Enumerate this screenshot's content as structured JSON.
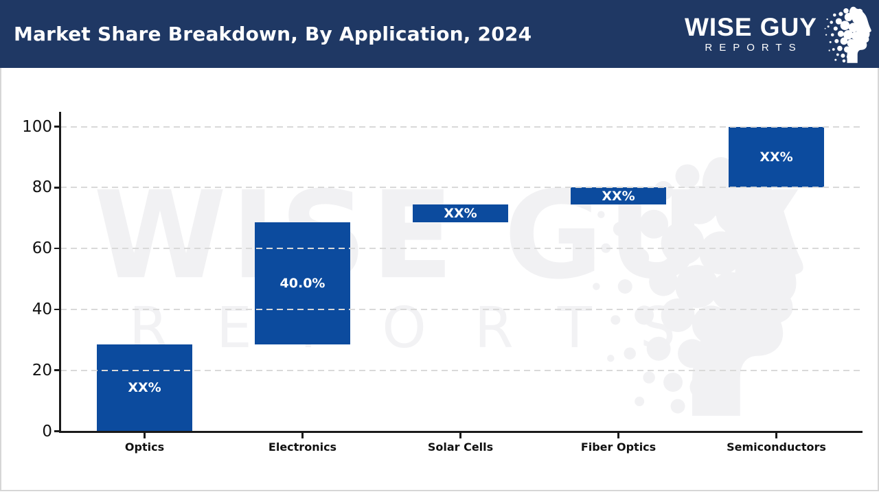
{
  "header": {
    "title": "Market Share Breakdown, By Application, 2024",
    "logo_primary": "WISE GUY",
    "logo_secondary": "REPORTS"
  },
  "watermark": {
    "primary": "WISE GUY",
    "secondary": "REPORTS"
  },
  "colors": {
    "header_bg": "#1f3864",
    "bar": "#0c4b9e",
    "grid": "#d9d9d9",
    "axis": "#1a1a1a",
    "bar_label": "#ffffff",
    "watermark": "#f1f1f3"
  },
  "chart_data": {
    "type": "bar",
    "subtype": "waterfall",
    "title": "Market Share Breakdown, By Application, 2024",
    "categories": [
      "Optics",
      "Electronics",
      "Solar Cells",
      "Fiber Optics",
      "Semiconductors"
    ],
    "series": [
      {
        "name": "Market share (%)",
        "segments": [
          {
            "category": "Optics",
            "start": 0,
            "end": 28.5,
            "label": "XX%"
          },
          {
            "category": "Electronics",
            "start": 28.5,
            "end": 68.5,
            "label": "40.0%"
          },
          {
            "category": "Solar Cells",
            "start": 68.5,
            "end": 74.5,
            "label": "XX%"
          },
          {
            "category": "Fiber Optics",
            "start": 74.5,
            "end": 80,
            "label": "XX%"
          },
          {
            "category": "Semiconductors",
            "start": 80,
            "end": 100,
            "label": "XX%"
          }
        ]
      }
    ],
    "yticks": [
      0,
      20,
      40,
      60,
      80,
      100
    ],
    "ylim": [
      0,
      105
    ],
    "xlabel": "",
    "ylabel": "",
    "grid": "horizontal-dashed-over-bars",
    "legend": "none"
  }
}
